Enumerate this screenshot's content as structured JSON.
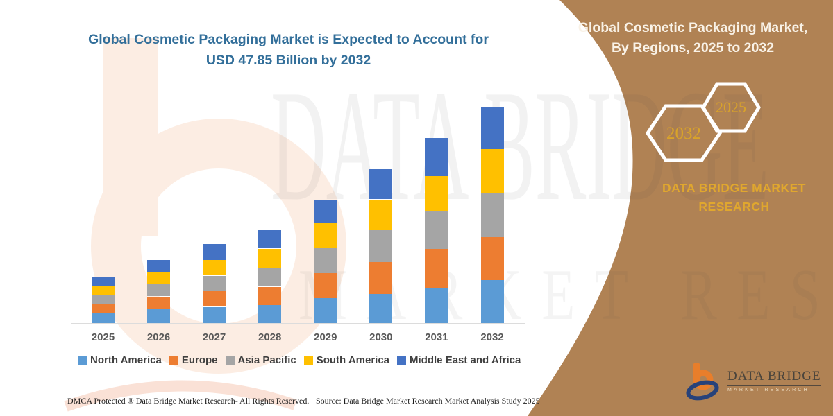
{
  "header": {
    "title": "Global Cosmetic Packaging Market is Expected to Account for USD 47.85 Billion by 2032"
  },
  "side_panel": {
    "title": "Global Cosmetic Packaging Market, By Regions, 2025 to 2032",
    "hexagons": [
      {
        "label": "2032"
      },
      {
        "label": "2025"
      }
    ],
    "brand": "DATA BRIDGE MARKET RESEARCH",
    "bg_color": "#B08254",
    "accent_color": "#E0A72E"
  },
  "chart_data": {
    "type": "bar",
    "stacked": true,
    "title": "Global Cosmetic Packaging Market is Expected to Account for USD 47.85 Billion by 2032",
    "unit": "USD Billion",
    "categories": [
      "2025",
      "2026",
      "2027",
      "2028",
      "2029",
      "2030",
      "2031",
      "2032"
    ],
    "series": [
      {
        "name": "North America",
        "color": "#5B9BD5",
        "values": [
          2.19,
          3.07,
          3.59,
          3.94,
          5.47,
          6.48,
          7.82,
          9.49
        ]
      },
      {
        "name": "Europe",
        "color": "#ED7D31",
        "values": [
          2.05,
          2.82,
          3.57,
          4.09,
          5.63,
          7.05,
          8.54,
          9.53
        ]
      },
      {
        "name": "Asia Pacific",
        "color": "#A5A5A5",
        "values": [
          2.04,
          2.65,
          3.33,
          4.08,
          5.52,
          7.01,
          8.32,
          9.7
        ]
      },
      {
        "name": "South America",
        "color": "#FFC000",
        "values": [
          1.89,
          2.71,
          3.42,
          4.35,
          5.61,
          6.79,
          7.86,
          9.69
        ]
      },
      {
        "name": "Middle East and Africa",
        "color": "#4472C4",
        "values": [
          2.05,
          2.65,
          3.48,
          4.08,
          4.97,
          6.65,
          8.34,
          9.44
        ]
      }
    ],
    "totals": [
      10.22,
      13.9,
      17.39,
      20.54,
      27.2,
      33.98,
      40.88,
      47.85
    ],
    "ylim": [
      0,
      50
    ],
    "grid": false,
    "yaxis_visible": false,
    "legend_position": "bottom"
  },
  "watermark": {
    "line1": "DATA BRIDGE",
    "line2": "MARKET RESEARCH"
  },
  "footer": {
    "left": "DMCA Protected ® Data Bridge Market Research-  All Rights Reserved.",
    "source": "Source: Data Bridge Market Research  Market Analysis Study 2025"
  },
  "logo": {
    "name": "DATA BRIDGE",
    "subtext": "MARKET RESEARCH"
  }
}
